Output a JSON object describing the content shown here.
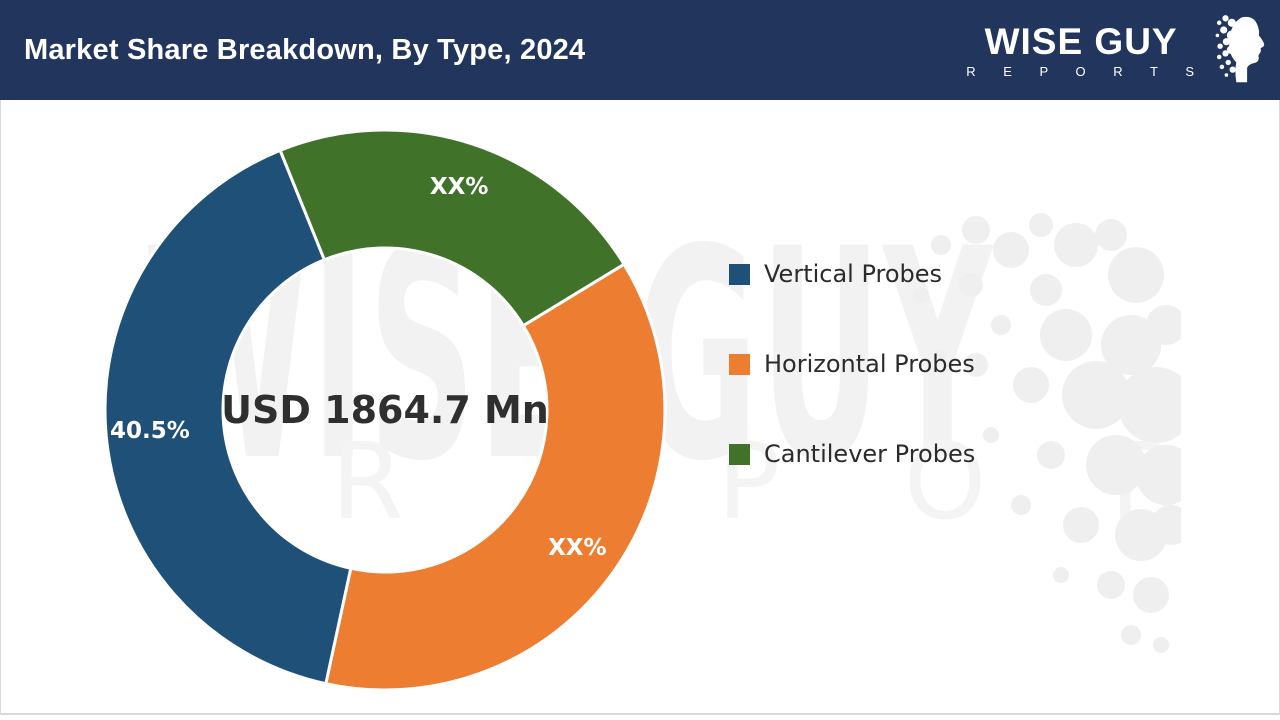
{
  "header": {
    "title": "Market Share Breakdown, By Type, 2024",
    "bg_color": "#21355D",
    "brand": {
      "name": "WISE GUY",
      "sub": "R E P O R T S"
    }
  },
  "chart_data": {
    "type": "pie",
    "subtype": "donut",
    "title": "Market Share Breakdown, By Type, 2024",
    "center_label": "USD 1864.7 Mn",
    "start_angle_deg_cw_from_top": -22,
    "segments": [
      {
        "name": "Cantilever Probes",
        "display_label": "XX%",
        "value_pct_est": 22.4,
        "color": "#407229"
      },
      {
        "name": "Horizontal Probes",
        "display_label": "XX%",
        "value_pct_est": 37.1,
        "color": "#ED7D31"
      },
      {
        "name": "Vertical Probes",
        "display_label": "40.5%",
        "value_pct_est": 40.5,
        "color": "#1F5078"
      }
    ],
    "legend_position": "right",
    "legend_order": [
      "Vertical Probes",
      "Horizontal Probes",
      "Cantilever Probes"
    ]
  },
  "colors": {
    "header_navy": "#21355D",
    "blue": "#1F5078",
    "orange": "#ED7D31",
    "green": "#407229",
    "center_text": "#2F2F2F",
    "frame_line": "#D9D9D9",
    "watermark": "#F2F2F2"
  }
}
